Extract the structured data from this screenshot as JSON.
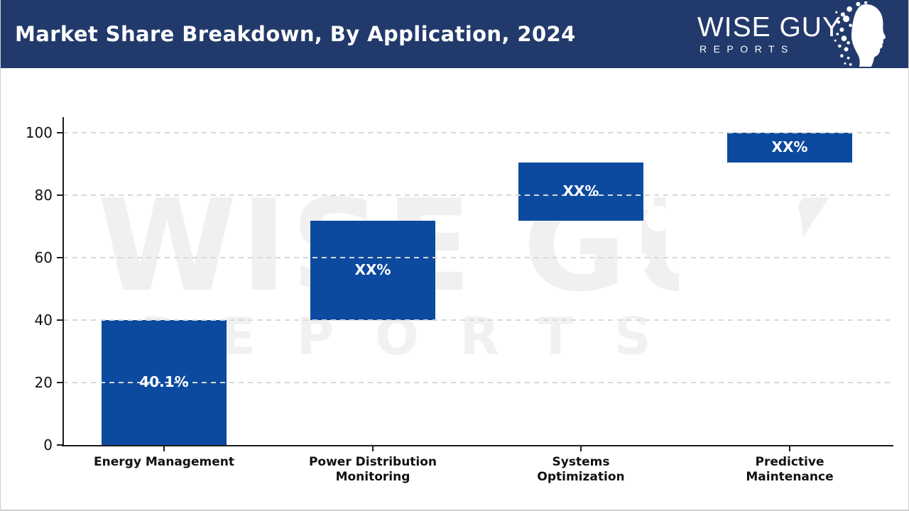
{
  "header": {
    "title": "Market Share Breakdown, By Application, 2024",
    "bg_color": "#223a6b",
    "text_color": "#ffffff",
    "logo": {
      "line1": "WISE GUY",
      "line2": "REPORTS",
      "head_icon": "dotted-head-profile-icon"
    }
  },
  "watermark": {
    "line1": "WISE GUY",
    "line2": "REPORTS",
    "head_icon": "dotted-head-profile-icon",
    "color": "#f0f0f0"
  },
  "chart_data": {
    "type": "bar",
    "subtype": "waterfall",
    "title": "Market Share Breakdown, By Application, 2024",
    "categories": [
      "Energy Management",
      "Power Distribution Monitoring",
      "Systems Optimization",
      "Predictive Maintenance"
    ],
    "category_lines": [
      [
        "Energy Management"
      ],
      [
        "Power Distribution",
        "Monitoring"
      ],
      [
        "Systems",
        "Optimization"
      ],
      [
        "Predictive",
        "Maintenance"
      ]
    ],
    "segments": [
      {
        "category": "Energy Management",
        "start": 0,
        "end": 40.1,
        "label": "40.1%"
      },
      {
        "category": "Power Distribution Monitoring",
        "start": 40.1,
        "end": 71.8,
        "label": "XX%"
      },
      {
        "category": "Systems Optimization",
        "start": 71.8,
        "end": 90.5,
        "label": "XX%"
      },
      {
        "category": "Predictive Maintenance",
        "start": 90.5,
        "end": 100,
        "label": "XX%"
      }
    ],
    "ylim": [
      0,
      100
    ],
    "yticks": [
      0,
      20,
      40,
      60,
      80,
      100
    ],
    "xlabel": "",
    "ylabel": "",
    "grid": "horizontal-dashed",
    "legend": "none",
    "bar_color": "#0b4a9f",
    "bar_label_color": "#ffffff",
    "axis_color": "#1c1c1c",
    "grid_color": "#d8d8d8"
  }
}
